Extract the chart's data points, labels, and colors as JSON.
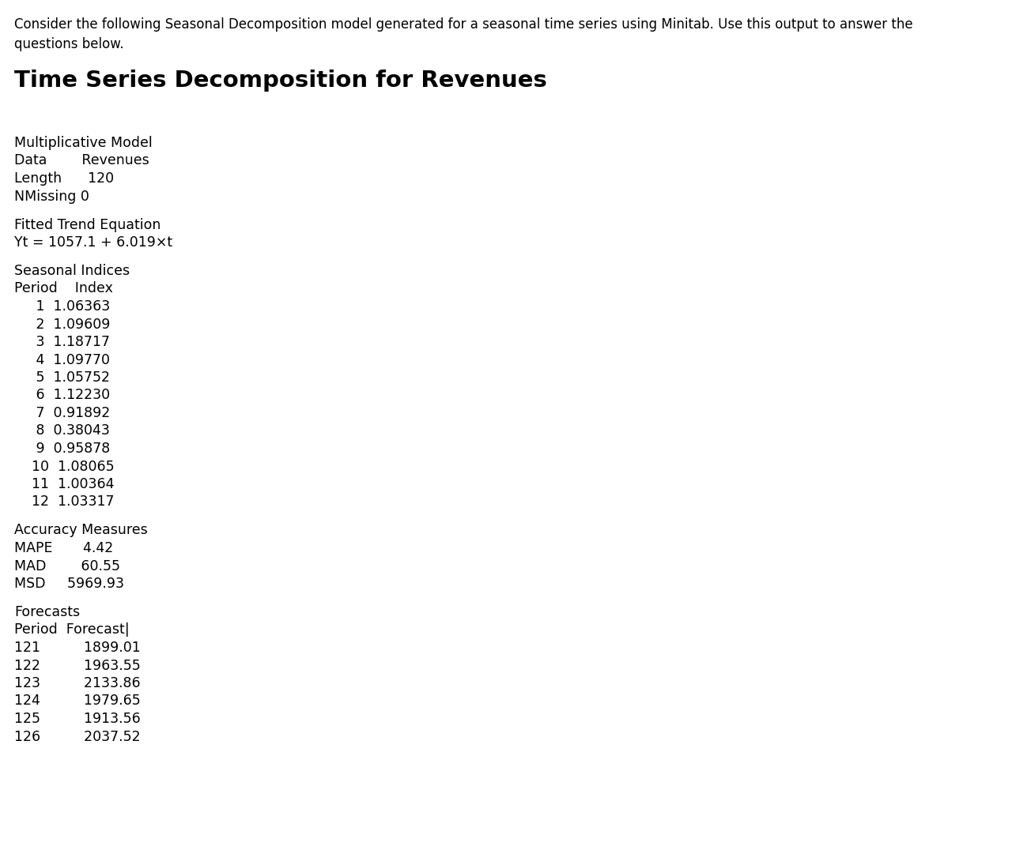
{
  "intro_text": "Consider the following Seasonal Decomposition model generated for a seasonal time series using Minitab. Use this output to answer the\nquestions below.",
  "title": "Time Series Decomposition for Revenues",
  "model_type": "Multiplicative Model",
  "data_label": "Data",
  "data_value": "Revenues",
  "length_label": "Length",
  "length_value": "120",
  "nmissing_label": "NMissing",
  "nmissing_value": "0",
  "trend_label": "Fitted Trend Equation",
  "trend_equation": "Yt = 1057.1 + 6.019×t",
  "seasonal_indices_header": "Seasonal Indices",
  "period_header": "Period",
  "index_header": "Index",
  "periods": [
    1,
    2,
    3,
    4,
    5,
    6,
    7,
    8,
    9,
    10,
    11,
    12
  ],
  "indices": [
    "1.06363",
    "1.09609",
    "1.18717",
    "1.09770",
    "1.05752",
    "1.12230",
    "0.91892",
    "0.38043",
    "0.95878",
    "1.08065",
    "1.00364",
    "1.03317"
  ],
  "accuracy_header": "Accuracy Measures",
  "mape_label": "MAPE",
  "mape_value": "4.42",
  "mad_label": "MAD",
  "mad_value": "60.55",
  "msd_label": "MSD",
  "msd_value": "5969.93",
  "forecasts_header": "Forecasts",
  "forecast_period_header": "Period",
  "forecast_value_header": "Forecast|",
  "forecast_periods": [
    121,
    122,
    123,
    124,
    125,
    126
  ],
  "forecast_values": [
    "1899.01",
    "1963.55",
    "2133.86",
    "1979.65",
    "1913.56",
    "2037.52"
  ],
  "bg_color": "#ffffff",
  "text_color": "#000000",
  "intro_fontsize": 12.0,
  "title_fontsize": 21,
  "mono_fontsize": 12.5,
  "border_color": "#d0d0d0"
}
